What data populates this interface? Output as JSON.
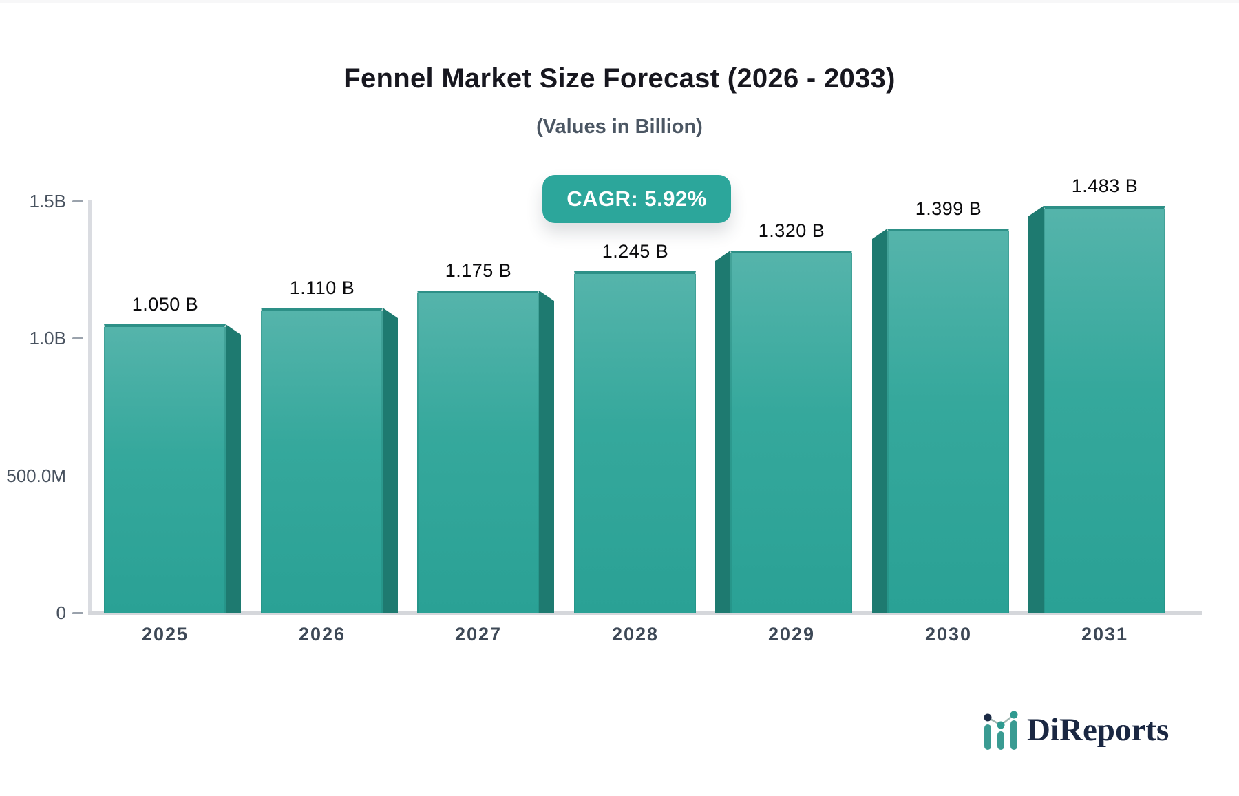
{
  "header": {
    "title": "Fennel Market Size Forecast (2026 - 2033)",
    "subtitle": "(Values in Billion)"
  },
  "badge": {
    "label": "CAGR: 5.92%",
    "background_color": "#2ca69b",
    "text_color": "#ffffff"
  },
  "brand": {
    "name": "DiReports",
    "icon": "mini-bar-line-chart-icon",
    "icon_bar_color": "#3a9b92",
    "icon_dot_dark_color": "#1c2b45",
    "icon_dot_teal_color": "#2f9a90",
    "text_color": "#1a2742"
  },
  "chart_data": {
    "type": "bar",
    "title": "Fennel Market Size Forecast (2026 - 2033)",
    "subtitle": "(Values in Billion)",
    "categories": [
      "2025",
      "2026",
      "2027",
      "2028",
      "2029",
      "2030",
      "2031"
    ],
    "values": [
      1.05,
      1.11,
      1.175,
      1.245,
      1.32,
      1.399,
      1.483
    ],
    "value_labels": [
      "1.050 B",
      "1.110 B",
      "1.175 B",
      "1.245 B",
      "1.320 B",
      "1.399 B",
      "1.483 B"
    ],
    "unit": "Billion",
    "xlabel": "",
    "ylabel": "",
    "ylim": [
      0,
      1.5
    ],
    "grid": false,
    "legend": "none",
    "yticks": [
      {
        "value": 0,
        "label": "0",
        "dash": true
      },
      {
        "value": 0.5,
        "label": "500.0M",
        "dash": false
      },
      {
        "value": 1.0,
        "label": "1.0B",
        "dash": true
      },
      {
        "value": 1.5,
        "label": "1.5B",
        "dash": true
      }
    ],
    "bar_style": {
      "face_gradient_top": "#55b4ab",
      "face_gradient_bottom": "#2aa195",
      "face_top_edge": "#2d9087",
      "side_3d_color": "#1e7a70",
      "axis_line_color": "#d5d7db"
    }
  }
}
